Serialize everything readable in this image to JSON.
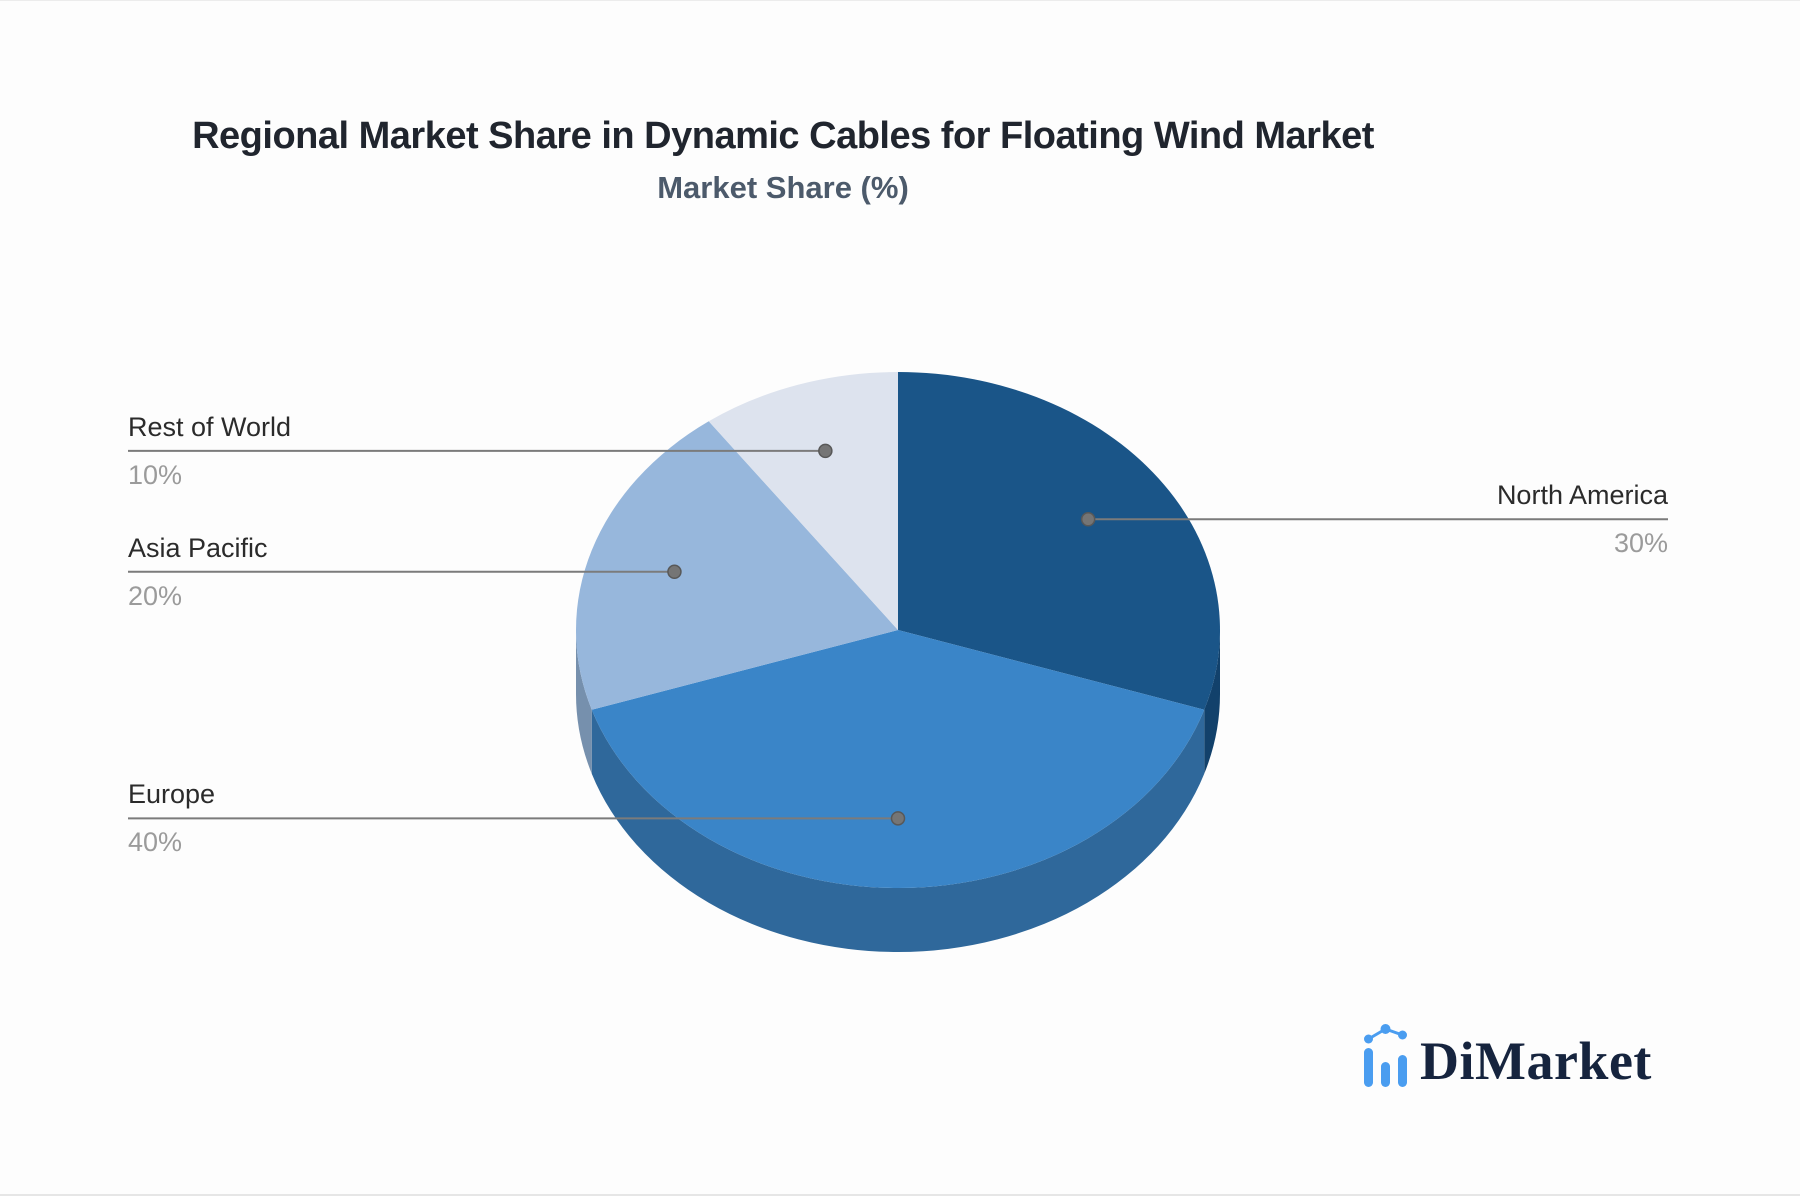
{
  "header": {
    "title": "Regional Market Share in Dynamic Cables for Floating Wind Market",
    "subtitle": "Market Share (%)"
  },
  "chart_data": {
    "type": "pie",
    "style": "3d",
    "title": "Regional Market Share in Dynamic Cables for Floating Wind Market",
    "unit": "%",
    "start_angle": "top",
    "direction": "clockwise",
    "legend_position": "callout-labels",
    "slices": [
      {
        "label": "North America",
        "value": 30,
        "display": "30%",
        "color": "#1a5588",
        "rim_color": "#12416b",
        "side": "right"
      },
      {
        "label": "Europe",
        "value": 40,
        "display": "40%",
        "color": "#3a85c8",
        "rim_color": "#2f689b",
        "side": "left"
      },
      {
        "label": "Asia Pacific",
        "value": 20,
        "display": "20%",
        "color": "#97b7dc",
        "rim_color": "#7690ad",
        "side": "left"
      },
      {
        "label": "Rest of World",
        "value": 10,
        "display": "10%",
        "color": "#dde3ee",
        "rim_color": "#b4bfd1",
        "side": "left"
      }
    ],
    "callout_line_color": "#7b7b7b",
    "callout_dot_color": "#757575",
    "label_color": "#2b2b2b",
    "value_color": "#9b9b9b"
  },
  "branding": {
    "name": "DiMarket",
    "icon": "bar-line-chart-icon",
    "icon_color": "#4a9df0",
    "text_color": "#16243e"
  }
}
